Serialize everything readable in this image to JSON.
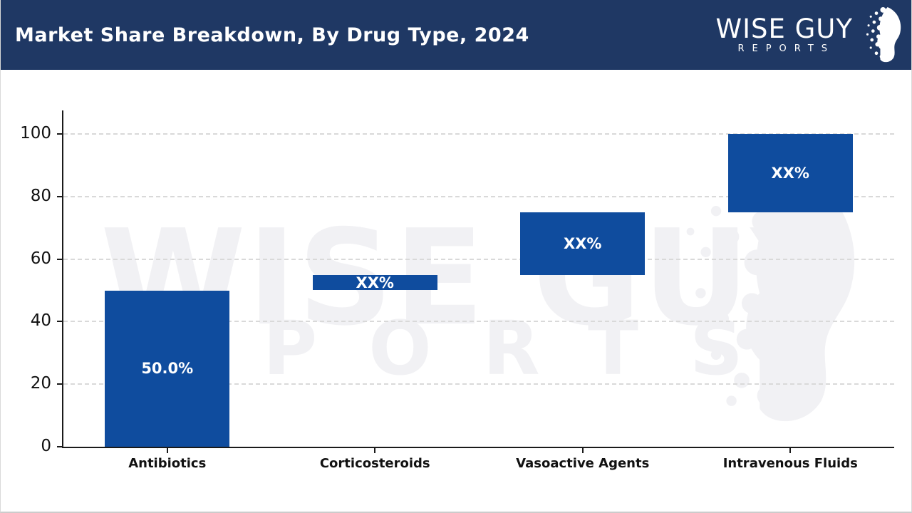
{
  "header": {
    "title": "Market Share Breakdown, By Drug Type, 2024",
    "bg_color": "#1F3864",
    "logo": {
      "line1": "WISE GUY",
      "line2": "REPORTS"
    }
  },
  "watermark": {
    "line1": "WISE GUY",
    "line2": "PORTS"
  },
  "chart_data": {
    "type": "bar",
    "subtype": "waterfall",
    "title": "Market Share Breakdown, By Drug Type, 2024",
    "xlabel": "",
    "ylabel": "",
    "categories": [
      "Antibiotics",
      "Corticosteroids",
      "Vasoactive Agents",
      "Intravenous Fluids"
    ],
    "segments": [
      {
        "category": "Antibiotics",
        "start": 0,
        "end": 50,
        "value": 50,
        "label": "50.0%"
      },
      {
        "category": "Corticosteroids",
        "start": 50,
        "end": 55,
        "value": 5,
        "label": "XX%"
      },
      {
        "category": "Vasoactive Agents",
        "start": 55,
        "end": 75,
        "value": 20,
        "label": "XX%"
      },
      {
        "category": "Intravenous Fluids",
        "start": 75,
        "end": 100,
        "value": 25,
        "label": "XX%"
      }
    ],
    "yticks": [
      0,
      20,
      40,
      60,
      80,
      100
    ],
    "ylim": [
      0,
      107.5
    ],
    "bar_color": "#0F4C9E",
    "grid": "horizontal-dashed",
    "legend": "none"
  }
}
